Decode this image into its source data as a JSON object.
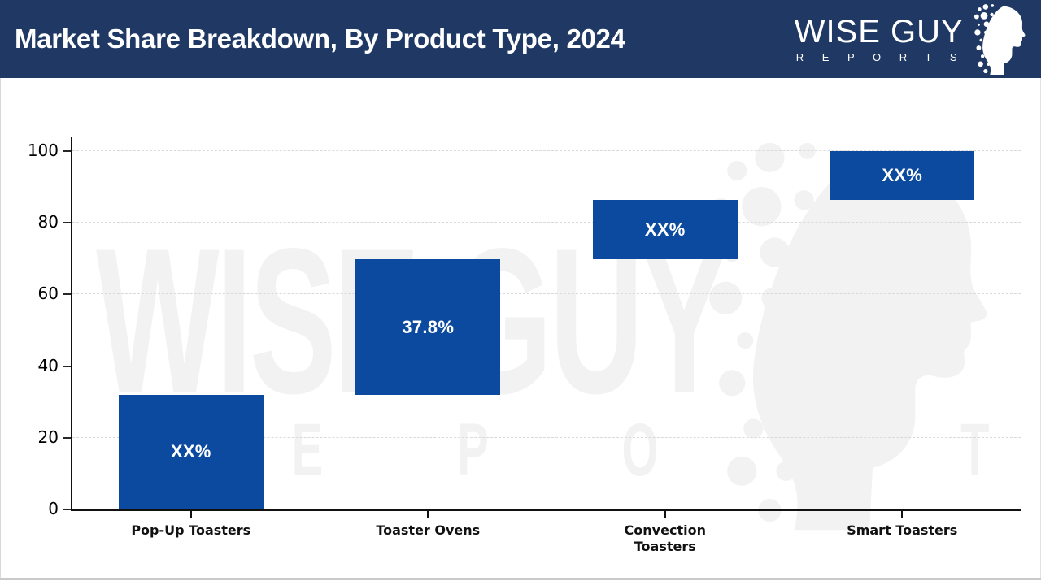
{
  "header": {
    "title": "Market Share Breakdown, By Product Type, 2024",
    "bg_color": "#1f3864",
    "logo": {
      "line1": "WISE GUY",
      "line2": "R E P O R T S"
    }
  },
  "watermark": {
    "line1": "WISE GUY",
    "line2": "R E P O R T S",
    "color": "#f2f2f3"
  },
  "chart_data": {
    "type": "bar",
    "subtype": "waterfall (floating segment bars)",
    "title": "Market Share Breakdown, By Product Type, 2024",
    "categories": [
      "Pop-Up Toasters",
      "Toaster Ovens",
      "Convection Toasters",
      "Smart Toasters"
    ],
    "segments": [
      {
        "category": "Pop-Up Toasters",
        "label": "XX%",
        "start": 0,
        "end": 32,
        "value_est": 32
      },
      {
        "category": "Toaster Ovens",
        "label": "37.8%",
        "start": 32,
        "end": 69.8,
        "value": 37.8
      },
      {
        "category": "Convection Toasters",
        "label": "XX%",
        "start": 69.8,
        "end": 86.3,
        "value_est": 16.5
      },
      {
        "category": "Smart Toasters",
        "label": "XX%",
        "start": 86.3,
        "end": 100,
        "value_est": 13.7
      }
    ],
    "xlabel": "",
    "ylabel": "",
    "ylim": [
      0,
      100
    ],
    "yticks": [
      0,
      20,
      40,
      60,
      80,
      100
    ],
    "grid": "horizontal dashed",
    "legend": "none",
    "bar_color": "#0b4a9e",
    "bar_label_color": "#ffffff",
    "axis_color": "#111111"
  }
}
